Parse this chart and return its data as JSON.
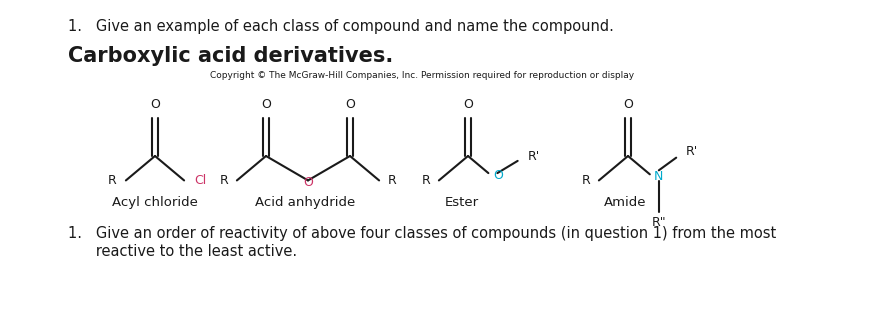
{
  "background_color": "#ffffff",
  "title1": "1.   Give an example of each class of compound and name the compound.",
  "title1_fontsize": 10.5,
  "title1_bold": false,
  "subtitle": "Carboxylic acid derivatives.",
  "subtitle_fontsize": 15,
  "subtitle_bold": true,
  "copyright": "Copyright © The McGraw-Hill Companies, Inc. Permission required for reproduction or display",
  "copyright_fontsize": 6.5,
  "compounds": [
    "Acyl chloride",
    "Acid anhydride",
    "Ester",
    "Amide"
  ],
  "compounds_fontsize": 9.5,
  "title2_line1": "1.   Give an order of reactivity of above four classes of compounds (in question 1) from the most",
  "title2_line2": "      reactive to the least active.",
  "title2_fontsize": 10.5,
  "title2_bold": false,
  "text_color": "#1a1a1a",
  "pink_color": "#cc3366",
  "cyan_color": "#00aacc",
  "black_color": "#1a1a1a"
}
